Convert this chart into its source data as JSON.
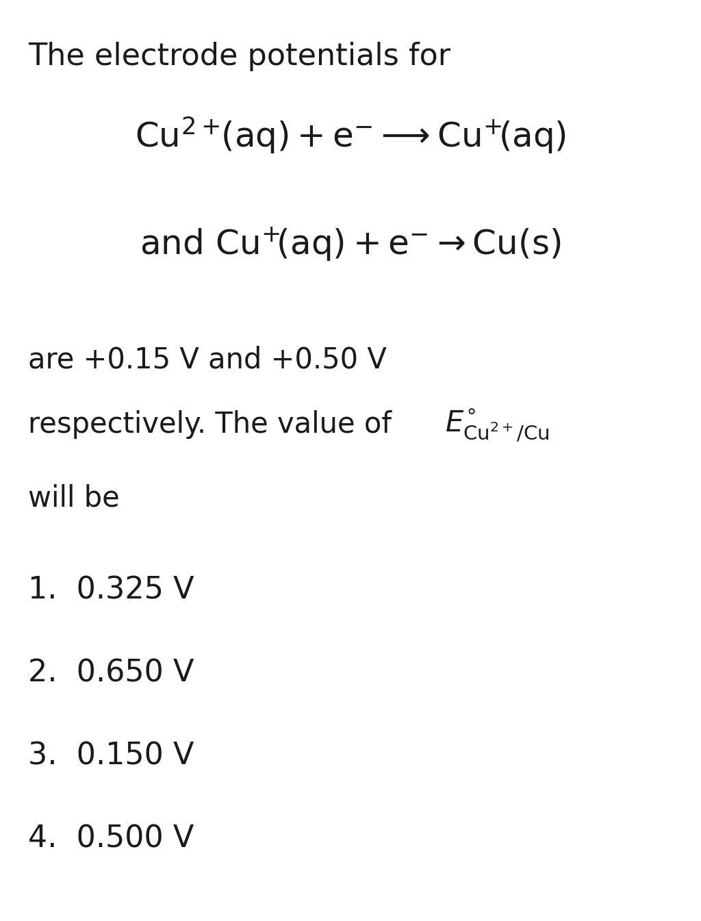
{
  "background_color": "#ffffff",
  "text_color": "#1a1a1a",
  "title_line": "The electrode potentials for",
  "eq1_latex": "$\\mathrm{Cu}^{2+}\\!\\left(\\mathrm{aq}\\right) + \\mathrm{e}^{-} \\longrightarrow \\mathrm{Cu}^{+}\\!\\left(\\mathrm{aq}\\right)$",
  "eq2_latex": "$\\mathrm{and\\ } \\mathrm{Cu}^{+}\\!\\left(\\mathrm{aq}\\right) + \\mathrm{e}^{-} \\rightarrow \\mathrm{Cu(s)}$",
  "body_line1": "are +0.15 V and +0.50 V",
  "body_line2_part1": "respectively. The value of ",
  "body_line2_math": "$E^{\\circ}_{\\mathrm{Cu}^{2+}/\\mathrm{Cu}}$",
  "body_line3": "will be",
  "options": [
    "1.  0.325 V",
    "2.  0.650 V",
    "3.  0.150 V",
    "4.  0.500 V"
  ],
  "bottom_bar_color": "#4caf50",
  "font_size_title": 32,
  "font_size_eq": 36,
  "font_size_body": 30,
  "font_size_options": 32,
  "figsize": [
    10.24,
    13.45
  ],
  "dpi": 100
}
